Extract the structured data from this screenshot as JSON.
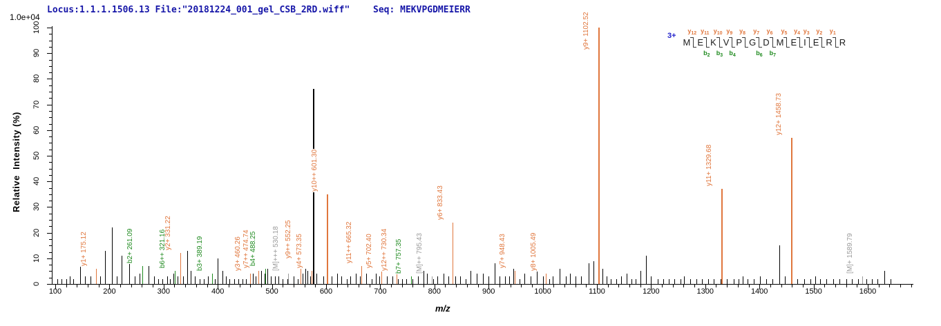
{
  "header": {
    "locus_file": "Locus:1.1.1.1506.13 File:\"20181224_001_gel_CSB_2RD.wiff\"",
    "seq_text": "Seq: MEKVPGDMEIERR"
  },
  "y_axis": {
    "title": "Relative  Intensity (%)",
    "scale_note": "1.0e+04",
    "tick_labels": [
      "0",
      "10",
      "20",
      "30",
      "40",
      "50",
      "60",
      "70",
      "80",
      "90",
      "100"
    ],
    "major_step": 10,
    "minor_step": 2.5
  },
  "x_axis": {
    "title": "m/z",
    "tick_labels": [
      "100",
      "200",
      "300",
      "400",
      "500",
      "600",
      "700",
      "800",
      "900",
      "1000",
      "1100",
      "1200",
      "1300",
      "1400",
      "1500",
      "1600"
    ],
    "major_step": 100,
    "minor_step": 20
  },
  "sequence": {
    "charge": "3+",
    "residues": [
      "M",
      "E",
      "K",
      "V",
      "P",
      "G",
      "D",
      "M",
      "E",
      "I",
      "E",
      "R",
      "R"
    ],
    "y_ion_numbers": [
      12,
      11,
      10,
      9,
      8,
      7,
      6,
      5,
      4,
      3,
      2,
      1
    ],
    "b_ion_boundaries": [
      2,
      3,
      4,
      6,
      7
    ]
  },
  "colors": {
    "y_ion": "#E0763C",
    "b_ion": "#1F8A1F",
    "precursor": "#9A9A9A",
    "peak_default": "#000000",
    "header_text": "#1616A8",
    "charge_text": "#2222CC",
    "axis": "#000000"
  },
  "chart_data": {
    "type": "bar",
    "title": "",
    "xlabel": "m/z",
    "ylabel": "Relative  Intensity (%)",
    "xlim": [
      93,
      1684
    ],
    "ylim": [
      0,
      100
    ],
    "grid": false,
    "legend": "none",
    "labeled_peaks": [
      {
        "label": "y1+ 175.12",
        "mz": 175.12,
        "intensity": 6,
        "series": "y"
      },
      {
        "label": "b2+ 261.09",
        "mz": 261.09,
        "intensity": 7,
        "series": "b"
      },
      {
        "label": "b6++ 321.16",
        "mz": 321.16,
        "intensity": 5,
        "series": "b"
      },
      {
        "label": "y2+ 331.22",
        "mz": 331.22,
        "intensity": 12,
        "series": "y"
      },
      {
        "label": "b3+ 389.19",
        "mz": 389.19,
        "intensity": 4,
        "series": "b"
      },
      {
        "label": "y3+ 460.26",
        "mz": 460.26,
        "intensity": 4,
        "series": "y"
      },
      {
        "label": "y7++ 474.74",
        "mz": 474.74,
        "intensity": 5,
        "series": "y"
      },
      {
        "label": "b4+ 488.25",
        "mz": 488.25,
        "intensity": 6,
        "series": "b"
      },
      {
        "label": "[M]+++ 530.18",
        "mz": 530.18,
        "intensity": 4,
        "series": "M"
      },
      {
        "label": "y9++ 552.25",
        "mz": 552.25,
        "intensity": 9,
        "series": "y"
      },
      {
        "label": "y4+ 573.35",
        "mz": 573.35,
        "intensity": 5,
        "series": "y"
      },
      {
        "label": "y10++ 601.30",
        "mz": 601.3,
        "intensity": 35,
        "series": "y"
      },
      {
        "label": "y11++ 665.32",
        "mz": 665.32,
        "intensity": 7,
        "series": "y"
      },
      {
        "label": "y5+ 702.40",
        "mz": 702.4,
        "intensity": 5,
        "series": "y"
      },
      {
        "label": "y12++ 730.34",
        "mz": 730.34,
        "intensity": 4,
        "series": "y"
      },
      {
        "label": "b7+ 757.35",
        "mz": 757.35,
        "intensity": 3,
        "series": "b"
      },
      {
        "label": "[M]++ 795.43",
        "mz": 795.43,
        "intensity": 3,
        "series": "M"
      },
      {
        "label": "y6+ 833.43",
        "mz": 833.43,
        "intensity": 24,
        "series": "y"
      },
      {
        "label": "y7+ 948.43",
        "mz": 948.43,
        "intensity": 5,
        "series": "y"
      },
      {
        "label": "y8+ 1005.49",
        "mz": 1005.49,
        "intensity": 4,
        "series": "y"
      },
      {
        "label": "y9+ 1102.52",
        "mz": 1102.52,
        "intensity": 100,
        "series": "y"
      },
      {
        "label": "y11+ 1329.68",
        "mz": 1329.68,
        "intensity": 37,
        "series": "y"
      },
      {
        "label": "y12+ 1458.73",
        "mz": 1458.73,
        "intensity": 57,
        "series": "y"
      },
      {
        "label": "[M]+ 1589.79",
        "mz": 1589.79,
        "intensity": 3,
        "series": "M"
      }
    ],
    "unlabeled_peaks": [
      [
        104,
        2
      ],
      [
        112,
        2
      ],
      [
        120,
        2
      ],
      [
        127,
        3
      ],
      [
        133,
        2
      ],
      [
        146,
        8
      ],
      [
        155,
        3
      ],
      [
        165,
        3
      ],
      [
        183,
        3
      ],
      [
        192,
        13
      ],
      [
        205,
        22
      ],
      [
        213,
        3
      ],
      [
        222,
        11
      ],
      [
        237,
        16
      ],
      [
        246,
        3
      ],
      [
        255,
        4
      ],
      [
        272,
        7
      ],
      [
        282,
        3
      ],
      [
        290,
        2
      ],
      [
        298,
        2
      ],
      [
        306,
        3
      ],
      [
        312,
        2
      ],
      [
        318,
        4
      ],
      [
        326,
        3
      ],
      [
        336,
        3
      ],
      [
        344,
        13
      ],
      [
        350,
        5
      ],
      [
        358,
        3
      ],
      [
        366,
        2
      ],
      [
        374,
        2
      ],
      [
        382,
        3
      ],
      [
        394,
        2
      ],
      [
        400,
        10
      ],
      [
        408,
        5
      ],
      [
        415,
        3
      ],
      [
        422,
        2
      ],
      [
        430,
        2
      ],
      [
        438,
        2
      ],
      [
        446,
        2
      ],
      [
        452,
        2
      ],
      [
        465,
        4
      ],
      [
        470,
        3
      ],
      [
        480,
        5
      ],
      [
        486,
        4
      ],
      [
        492,
        6
      ],
      [
        498,
        3
      ],
      [
        505,
        3
      ],
      [
        512,
        3
      ],
      [
        520,
        2
      ],
      [
        528,
        2
      ],
      [
        540,
        3
      ],
      [
        548,
        2
      ],
      [
        556,
        4
      ],
      [
        562,
        6
      ],
      [
        566,
        5
      ],
      [
        570,
        3
      ],
      [
        576,
        76
      ],
      [
        582,
        4
      ],
      [
        595,
        3
      ],
      [
        610,
        3
      ],
      [
        620,
        4
      ],
      [
        628,
        3
      ],
      [
        638,
        2
      ],
      [
        645,
        3
      ],
      [
        655,
        4
      ],
      [
        662,
        3
      ],
      [
        674,
        4
      ],
      [
        684,
        2
      ],
      [
        692,
        4
      ],
      [
        698,
        3
      ],
      [
        712,
        3
      ],
      [
        722,
        3
      ],
      [
        732,
        2
      ],
      [
        740,
        2
      ],
      [
        748,
        2
      ],
      [
        760,
        2
      ],
      [
        770,
        3
      ],
      [
        780,
        5
      ],
      [
        786,
        4
      ],
      [
        798,
        2
      ],
      [
        805,
        3
      ],
      [
        817,
        4
      ],
      [
        826,
        3
      ],
      [
        838,
        3
      ],
      [
        848,
        3
      ],
      [
        858,
        2
      ],
      [
        867,
        5
      ],
      [
        878,
        4
      ],
      [
        890,
        4
      ],
      [
        900,
        3
      ],
      [
        911,
        8
      ],
      [
        920,
        3
      ],
      [
        930,
        3
      ],
      [
        938,
        3
      ],
      [
        945,
        6
      ],
      [
        957,
        2
      ],
      [
        966,
        4
      ],
      [
        978,
        3
      ],
      [
        989,
        7
      ],
      [
        1000,
        3
      ],
      [
        1012,
        2
      ],
      [
        1018,
        3
      ],
      [
        1031,
        6
      ],
      [
        1042,
        3
      ],
      [
        1050,
        4
      ],
      [
        1060,
        3
      ],
      [
        1070,
        3
      ],
      [
        1085,
        8
      ],
      [
        1093,
        9
      ],
      [
        1110,
        6
      ],
      [
        1118,
        3
      ],
      [
        1126,
        2
      ],
      [
        1136,
        2
      ],
      [
        1145,
        3
      ],
      [
        1155,
        4
      ],
      [
        1164,
        2
      ],
      [
        1172,
        2
      ],
      [
        1180,
        5
      ],
      [
        1190,
        11
      ],
      [
        1200,
        3
      ],
      [
        1212,
        2
      ],
      [
        1222,
        2
      ],
      [
        1232,
        2
      ],
      [
        1243,
        2
      ],
      [
        1254,
        2
      ],
      [
        1261,
        3
      ],
      [
        1272,
        2
      ],
      [
        1283,
        2
      ],
      [
        1294,
        2
      ],
      [
        1305,
        2
      ],
      [
        1316,
        2
      ],
      [
        1328,
        2
      ],
      [
        1340,
        2
      ],
      [
        1352,
        2
      ],
      [
        1362,
        2
      ],
      [
        1369,
        3
      ],
      [
        1378,
        2
      ],
      [
        1390,
        2
      ],
      [
        1401,
        3
      ],
      [
        1412,
        2
      ],
      [
        1424,
        2
      ],
      [
        1437,
        15
      ],
      [
        1447,
        3
      ],
      [
        1470,
        2
      ],
      [
        1482,
        2
      ],
      [
        1494,
        2
      ],
      [
        1503,
        3
      ],
      [
        1512,
        2
      ],
      [
        1524,
        2
      ],
      [
        1536,
        2
      ],
      [
        1548,
        2
      ],
      [
        1560,
        2
      ],
      [
        1570,
        2
      ],
      [
        1582,
        2
      ],
      [
        1597,
        2
      ],
      [
        1608,
        2
      ],
      [
        1618,
        2
      ],
      [
        1631,
        5
      ],
      [
        1642,
        2
      ]
    ]
  }
}
